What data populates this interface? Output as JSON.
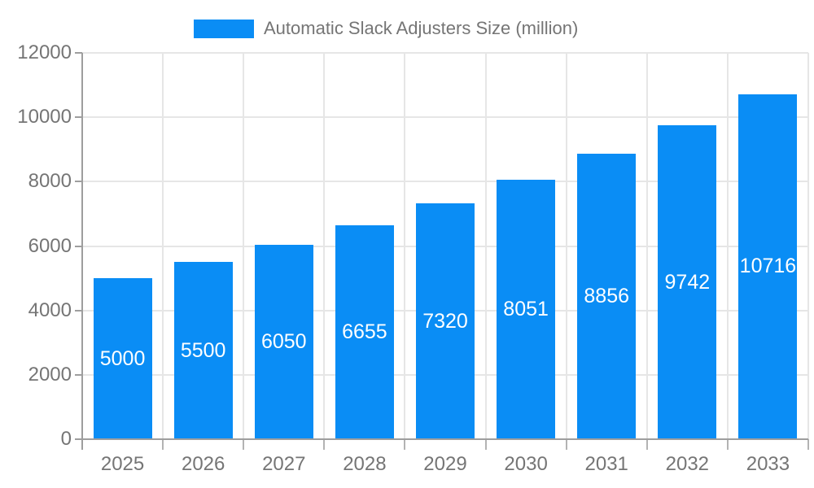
{
  "legend": {
    "label": "Automatic Slack Adjusters Size (million)"
  },
  "colors": {
    "bar": "#0a8df5",
    "bar_label": "#ffffff",
    "axis_label": "#757575",
    "axis_line": "#9e9e9e",
    "gridline": "#e6e6e6"
  },
  "chart_data": {
    "type": "bar",
    "title": "Automatic Slack Adjusters Size (million)",
    "categories": [
      "2025",
      "2026",
      "2027",
      "2028",
      "2029",
      "2030",
      "2031",
      "2032",
      "2033"
    ],
    "values": [
      5000,
      5500,
      6050,
      6655,
      7320,
      8051,
      8856,
      9742,
      10716
    ],
    "series": [
      {
        "name": "Automatic Slack Adjusters Size (million)",
        "values": [
          5000,
          5500,
          6050,
          6655,
          7320,
          8051,
          8856,
          9742,
          10716
        ]
      }
    ],
    "xlabel": "",
    "ylabel": "",
    "ylim": [
      0,
      12000
    ],
    "ytick_interval": 2000,
    "yticks": [
      "0",
      "2000",
      "4000",
      "6000",
      "8000",
      "10000",
      "12000"
    ],
    "grid": true,
    "legend_position": "top",
    "bar_labels_visible": true
  }
}
